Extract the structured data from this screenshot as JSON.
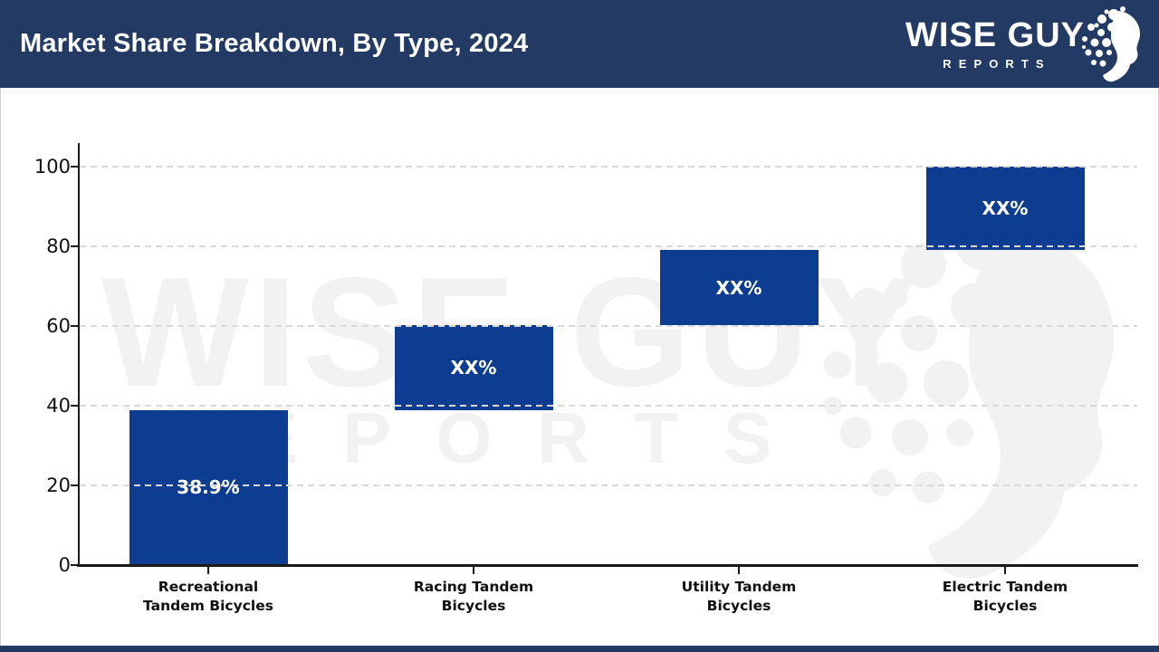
{
  "header": {
    "title": "Market Share Breakdown, By Type, 2024",
    "bg_color": "#233a64",
    "logo": {
      "line1": "WISE GUY",
      "line2": "REPORTS"
    }
  },
  "watermark": {
    "line1": "WISE GUY",
    "line2": "REPORTS"
  },
  "chart_data": {
    "type": "bar",
    "subtype": "waterfall",
    "title": "Market Share Breakdown, By Type, 2024",
    "categories": [
      "Recreational Tandem Bicycles",
      "Racing Tandem Bicycles",
      "Utility Tandem Bicycles",
      "Electric Tandem Bicycles"
    ],
    "categories_wrapped": [
      [
        "Recreational",
        "Tandem Bicycles"
      ],
      [
        "Racing Tandem",
        "Bicycles"
      ],
      [
        "Utility Tandem",
        "Bicycles"
      ],
      [
        "Electric Tandem",
        "Bicycles"
      ]
    ],
    "series": [
      {
        "name": "Market Share",
        "segments": [
          {
            "start": 0,
            "end": 38.9,
            "label": "38.9%"
          },
          {
            "start": 38.9,
            "end": 60.3,
            "label": "XX%"
          },
          {
            "start": 60.3,
            "end": 79.0,
            "label": "XX%"
          },
          {
            "start": 79.0,
            "end": 100.0,
            "label": "XX%"
          }
        ]
      }
    ],
    "xlabel": "",
    "ylabel": "",
    "ylim": [
      0,
      100
    ],
    "yticks": [
      0,
      20,
      40,
      60,
      80,
      100
    ],
    "grid": "horizontal-dashed, drawn above bars",
    "legend": "none",
    "bar_color": "#0d3d91",
    "bar_label_color": "#ffffff",
    "grid_color": "#d9d9d9",
    "axis_color": "#1a1a1a"
  }
}
